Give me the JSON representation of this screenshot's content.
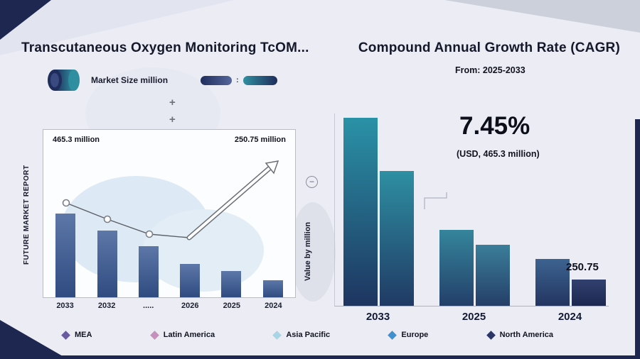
{
  "header": {
    "title_left": "Transcutaneous Oxygen Monitoring TcOM...",
    "title_right": "Compound Annual Growth Rate (CAGR)",
    "from_label": "From: 2025-2033"
  },
  "top_legend": {
    "market_size_label": "Market Size million",
    "separator": ":"
  },
  "left_panel": {
    "side_label": "FUTURE MARKET REPORT",
    "value_left": "465.3 million",
    "value_right": "250.75 million"
  },
  "right_panel": {
    "cagr_value": "7.45%",
    "cagr_sub": "(USD, 465.3 million)",
    "ylabel": "Value by million",
    "end_value": "250.75"
  },
  "bottom_legend": {
    "items": [
      {
        "label": "MEA",
        "color": "#6a5aa0"
      },
      {
        "label": "Latin America",
        "color": "#c690bd"
      },
      {
        "label": "Asia Pacific",
        "color": "#a8d4e6"
      },
      {
        "label": "Europe",
        "color": "#4090d0"
      },
      {
        "label": "North America",
        "color": "#2a3766"
      }
    ]
  },
  "chart_data": [
    {
      "type": "bar",
      "title": "Market size mini trend panel (FUTURE MARKET REPORT)",
      "categories": [
        "2033",
        "2032",
        ".....",
        "2026",
        "2025",
        "2024"
      ],
      "values": [
        100,
        80,
        61,
        40,
        31,
        20
      ],
      "unit": "relative bar height, tallest = 100",
      "annotations": [
        "465.3 million",
        "250.75 million"
      ],
      "overlay": "marker line declining from 2033 to 2026 then large upward arrow",
      "bar_color": [
        "#5d77a8",
        "#2f4b80"
      ]
    },
    {
      "type": "bar",
      "title": "Compound Annual Growth Rate (CAGR) 7.45% (USD, 465.3 million), From: 2025-2033",
      "categories": [
        "2033",
        "2025",
        "2024"
      ],
      "series": [
        {
          "name": "bar-left",
          "values": [
            265,
            107,
            66
          ]
        },
        {
          "name": "bar-right",
          "values": [
            190,
            86,
            37
          ]
        }
      ],
      "unit": "relative bar height px",
      "ylabel": "Value by million",
      "annotations": [
        "7.45%",
        "(USD, 465.3 million)",
        "250.75"
      ],
      "bar_colors": [
        [
          "#2a92a6",
          "#1e3560"
        ],
        [
          "#2e8fa2",
          "#203a64"
        ],
        [
          "#35859c",
          "#233f69"
        ],
        [
          "#3b7e99",
          "#253e68"
        ],
        [
          "#3d6390",
          "#233560"
        ],
        [
          "#32406f",
          "#1c2850"
        ]
      ]
    }
  ]
}
